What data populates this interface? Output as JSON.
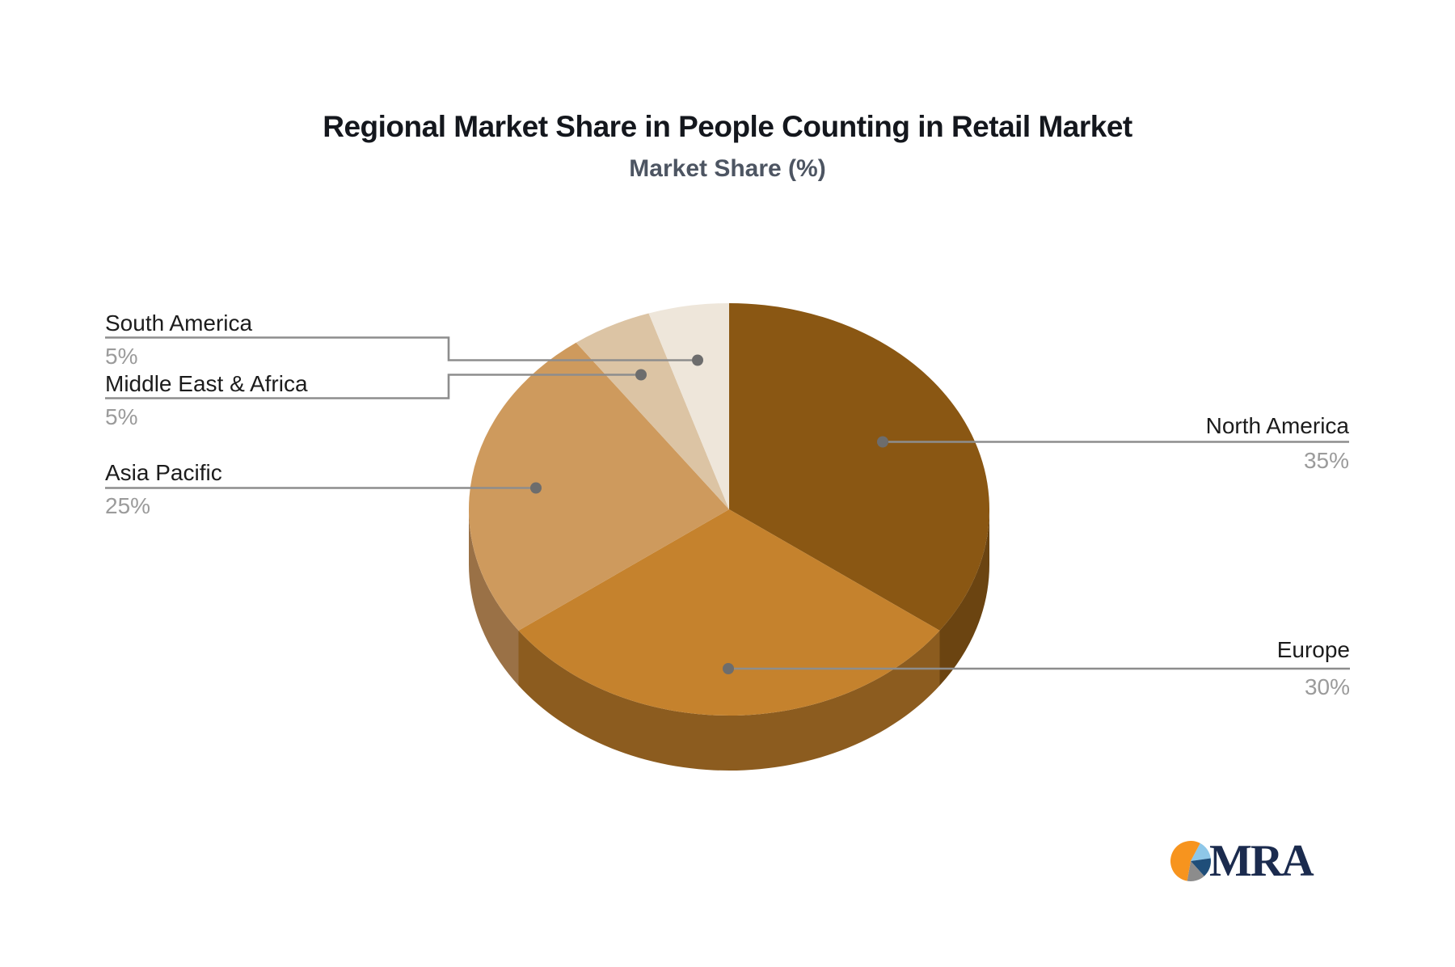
{
  "title": "Regional Market Share in People Counting in Retail Market",
  "subtitle": "Market Share (%)",
  "chart_data": {
    "type": "pie",
    "style": "3d-pie",
    "unit": "%",
    "start_angle_deg": 90,
    "direction": "clockwise",
    "legend": "callout-labels",
    "background": "#ffffff",
    "segments": [
      {
        "label": "North America",
        "value": 35,
        "value_label": "35%",
        "color": "#8A5713",
        "side_color": "#6B4411"
      },
      {
        "label": "Europe",
        "value": 30,
        "value_label": "30%",
        "color": "#C5822D",
        "side_color": "#8C5C1F"
      },
      {
        "label": "Asia Pacific",
        "value": 25,
        "value_label": "25%",
        "color": "#CE9A5D",
        "side_color": "#9A7146"
      },
      {
        "label": "Middle East & Africa",
        "value": 5,
        "value_label": "5%",
        "color": "#DCC4A4",
        "side_color": "#A38F76"
      },
      {
        "label": "South America",
        "value": 5,
        "value_label": "5%",
        "color": "#EEE6DA",
        "side_color": "#B5AD9F"
      }
    ],
    "label_color": "#1c1c1c",
    "value_color": "#9b9b9b",
    "leader_line_color": "#8d8d8d",
    "leader_dot_color": "#6d6d6d"
  },
  "logo": {
    "text": "MRA",
    "text_color": "#1b2b4e",
    "glyph": "pie-chart-icon",
    "glyph_slices": [
      {
        "name": "light-blue",
        "color": "#8EC7E8",
        "from_deg": 62,
        "to_deg": 8
      },
      {
        "name": "dark-blue",
        "color": "#1F4E79",
        "from_deg": 8,
        "to_deg": -48
      },
      {
        "name": "gray",
        "color": "#8C8C8C",
        "from_deg": -48,
        "to_deg": -100
      },
      {
        "name": "orange",
        "color": "#F7941E",
        "from_deg": -100,
        "to_deg": -298
      }
    ]
  }
}
